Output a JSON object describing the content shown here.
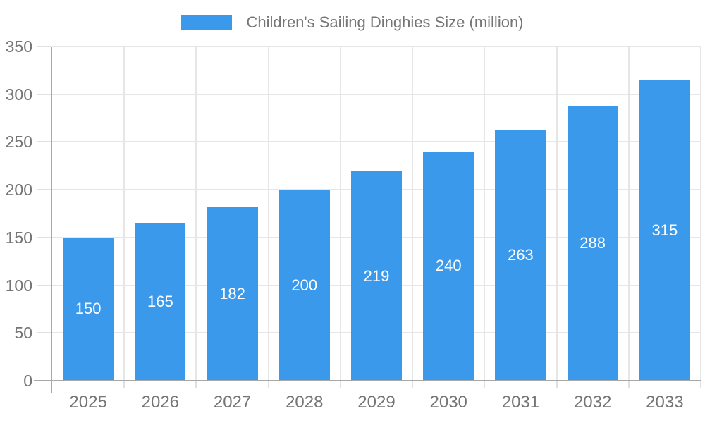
{
  "legend": {
    "label": "Children's Sailing Dinghies Size (million)"
  },
  "chart_data": {
    "type": "bar",
    "title": "Children's Sailing Dinghies Size (million)",
    "categories": [
      "2025",
      "2026",
      "2027",
      "2028",
      "2029",
      "2030",
      "2031",
      "2032",
      "2033"
    ],
    "values": [
      150,
      165,
      182,
      200,
      219,
      240,
      263,
      288,
      315
    ],
    "xlabel": "",
    "ylabel": "",
    "ylim": [
      0,
      350
    ],
    "yticks": [
      0,
      50,
      100,
      150,
      200,
      250,
      300,
      350
    ],
    "grid": true,
    "legend_position": "top",
    "value_labels": "centered-inside-bars"
  },
  "colors": {
    "bar": "#3B99EC",
    "text": "#757575",
    "axis": "#A8A8A8",
    "grid": "#E6E6E6",
    "tick": "#E0E0E0",
    "value_label": "#FFFFFF",
    "background": "#FFFFFF"
  }
}
